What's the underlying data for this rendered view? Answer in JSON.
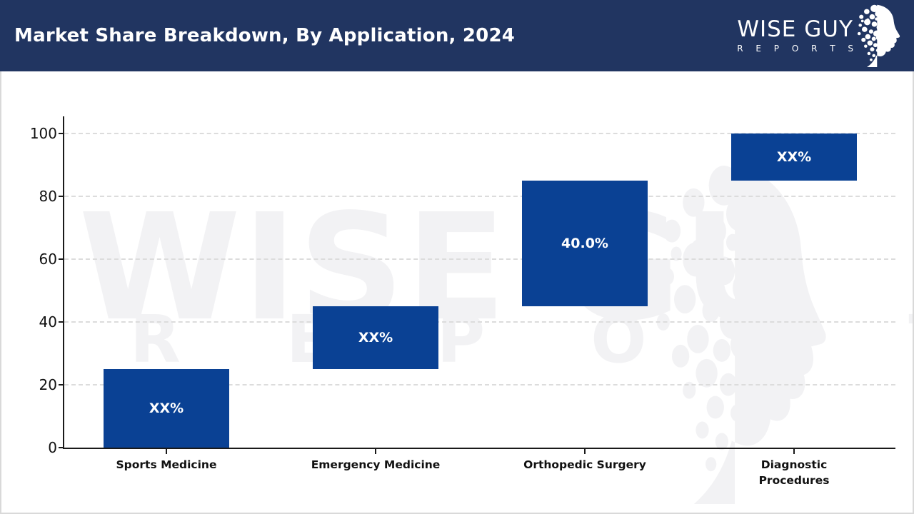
{
  "header": {
    "title": "Market Share Breakdown, By Application, 2024",
    "logo": {
      "line1": "WISE GUY",
      "line2": "R E P O R T S",
      "head_icon": "wiseguy-head-icon"
    }
  },
  "watermark": {
    "line1": "WISE GU",
    "line2": "R E P O R T S",
    "head_icon": "wiseguy-head-icon"
  },
  "chart_data": {
    "type": "bar",
    "subtype": "floating-waterfall",
    "title": "Market Share Breakdown, By Application, 2024",
    "categories": [
      "Sports Medicine",
      "Emergency Medicine",
      "Orthopedic Surgery",
      "Diagnostic Procedures"
    ],
    "series": [
      {
        "name": "Market Share (%)",
        "segments": [
          {
            "category": "Sports Medicine",
            "start": 0,
            "end": 25,
            "label": "XX%"
          },
          {
            "category": "Emergency Medicine",
            "start": 25,
            "end": 45,
            "label": "XX%"
          },
          {
            "category": "Orthopedic Surgery",
            "start": 45,
            "end": 85,
            "label": "40.0%"
          },
          {
            "category": "Diagnostic Procedures",
            "start": 85,
            "end": 100,
            "label": "XX%"
          }
        ]
      }
    ],
    "ylim": [
      0,
      100
    ],
    "yticks": [
      "0",
      "20",
      "40",
      "60",
      "80",
      "100"
    ],
    "xlabel": "",
    "ylabel": "",
    "grid": "horizontal-dashed",
    "legend": "none",
    "colors": {
      "bar_fill": "#0a4194",
      "bar_label": "#ffffff",
      "grid_line": "#dcdcdc",
      "axis_line": "#1a1a1a",
      "header_bg": "#213561",
      "watermark": "#f2f2f4"
    }
  }
}
